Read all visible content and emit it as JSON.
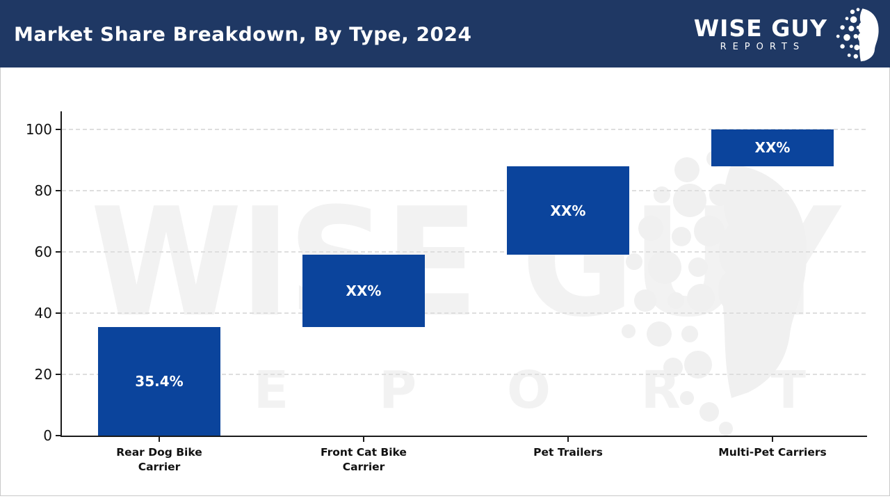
{
  "header": {
    "title": "Market Share Breakdown, By Type, 2024",
    "logo": {
      "line1": "WISE GUY",
      "line2": "REPORTS"
    }
  },
  "watermark": {
    "line1": "WISE GUY",
    "line2": "REPORTS"
  },
  "chart_data": {
    "type": "bar",
    "subtype": "floating-waterfall",
    "title": "Market Share Breakdown, By Type, 2024",
    "xlabel": "",
    "ylabel": "",
    "categories": [
      {
        "name": "Rear Dog Bike Carrier",
        "lines": [
          "Rear Dog Bike",
          "Carrier"
        ]
      },
      {
        "name": "Front Cat Bike Carrier",
        "lines": [
          "Front Cat Bike",
          "Carrier"
        ]
      },
      {
        "name": "Pet Trailers",
        "lines": [
          "Pet Trailers"
        ]
      },
      {
        "name": "Multi-Pet Carriers",
        "lines": [
          "Multi-Pet Carriers"
        ]
      }
    ],
    "bars": [
      {
        "category": "Rear Dog Bike Carrier",
        "start": 0,
        "end": 35.4,
        "label": "35.4%"
      },
      {
        "category": "Front Cat Bike Carrier",
        "start": 35.4,
        "end": 59,
        "label": "XX%"
      },
      {
        "category": "Pet Trailers",
        "start": 59,
        "end": 88,
        "label": "XX%"
      },
      {
        "category": "Multi-Pet Carriers",
        "start": 88,
        "end": 100,
        "label": "XX%"
      }
    ],
    "yticks": [
      0,
      20,
      40,
      60,
      80,
      100
    ],
    "ylim": [
      0,
      106
    ],
    "bar_color": "#0b449c",
    "grid": "horizontal-dashed",
    "legend": "none"
  },
  "colors": {
    "header_bg": "#1f3864",
    "bar": "#0b449c",
    "gridline": "#dedede",
    "watermark": "#f2f2f2"
  }
}
